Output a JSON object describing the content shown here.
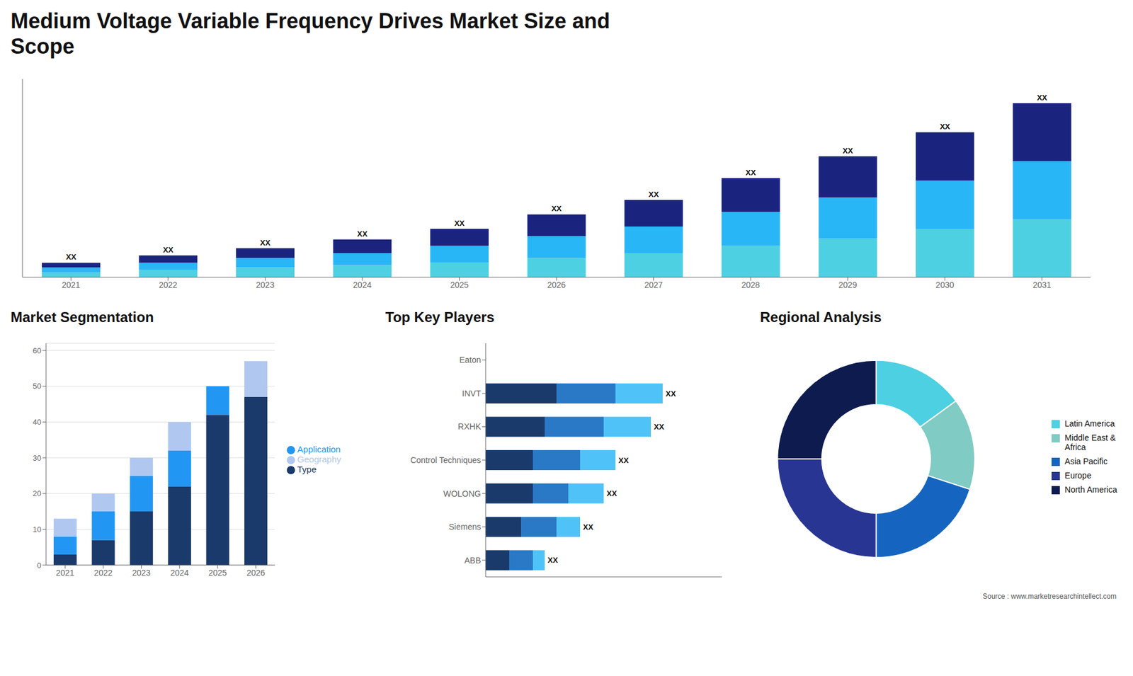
{
  "title": "Medium Voltage Variable Frequency Drives Market Size and\nScope",
  "annotations": [
    "Source : www.marketresearchintellect.com"
  ],
  "chart_data": [
    {
      "type": "bar",
      "stacked": true,
      "categories": [
        "2021",
        "2022",
        "2023",
        "2024",
        "2025",
        "2026",
        "2027",
        "2028",
        "2029",
        "2030",
        "2031"
      ],
      "series": [
        {
          "color": "#4dd0e1",
          "values": [
            1,
            1.5,
            2,
            2.5,
            3,
            4,
            5,
            6.5,
            8,
            10,
            12
          ]
        },
        {
          "color": "#29b6f6",
          "values": [
            1,
            1.5,
            2,
            2.5,
            3.5,
            4.5,
            5.5,
            7,
            8.5,
            10,
            12
          ]
        },
        {
          "color": "#1a237e",
          "values": [
            1,
            1.5,
            2,
            2.8,
            3.5,
            4.5,
            5.5,
            7,
            8.5,
            10,
            12
          ],
          "value_labels": [
            "XX",
            "XX",
            "XX",
            "XX",
            "XX",
            "XX",
            "XX",
            "XX",
            "XX",
            "XX",
            "XX"
          ]
        }
      ],
      "ylim": [
        0,
        41
      ],
      "tick_labels": "x"
    },
    {
      "type": "bar",
      "title": "Market Segmentation",
      "stacked": true,
      "categories": [
        "2021",
        "2022",
        "2023",
        "2024",
        "2025",
        "2026"
      ],
      "series": [
        {
          "name": "Type",
          "color": "#1a3a6b",
          "values": [
            3,
            7,
            15,
            22,
            42,
            47
          ]
        },
        {
          "name": "Application",
          "color": "#2196f3",
          "values": [
            5,
            8,
            10,
            10,
            8,
            0
          ]
        },
        {
          "name": "Geography",
          "color": "#b0c8f0",
          "values": [
            5,
            5,
            5,
            8,
            0,
            10
          ]
        }
      ],
      "ylim": [
        0,
        62
      ],
      "yticks": [
        0,
        10,
        20,
        30,
        40,
        50,
        60
      ],
      "grid": true,
      "legend": "right"
    },
    {
      "type": "bar",
      "title": "Top Key Players",
      "orientation": "horizontal",
      "stacked": true,
      "categories": [
        "Eaton",
        "INVT",
        "RXHK",
        "Control Techniques",
        "WOLONG",
        "Siemens",
        "ABB"
      ],
      "series": [
        {
          "color": "#1a3a6b",
          "values": [
            0,
            6,
            5,
            4,
            4,
            3,
            2
          ]
        },
        {
          "color": "#2979c7",
          "values": [
            0,
            5,
            5,
            4,
            3,
            3,
            2
          ]
        },
        {
          "color": "#4fc3f7",
          "values": [
            0,
            4,
            4,
            3,
            3,
            2,
            1
          ],
          "value_labels": [
            null,
            "XX",
            "XX",
            "XX",
            "XX",
            "XX",
            "XX"
          ]
        }
      ],
      "xlim": [
        0,
        20
      ],
      "tick_labels": "y"
    },
    {
      "type": "pie",
      "title": "Regional Analysis",
      "categories": [
        "Latin America",
        "Middle East &\nAfrica",
        "Asia Pacific",
        "Europe",
        "North America"
      ],
      "values": [
        15,
        15,
        20,
        25,
        25
      ],
      "colors": [
        "#4dd0e1",
        "#80cbc4",
        "#1565c0",
        "#283593",
        "#0d1b4f"
      ],
      "legend": "right"
    }
  ]
}
